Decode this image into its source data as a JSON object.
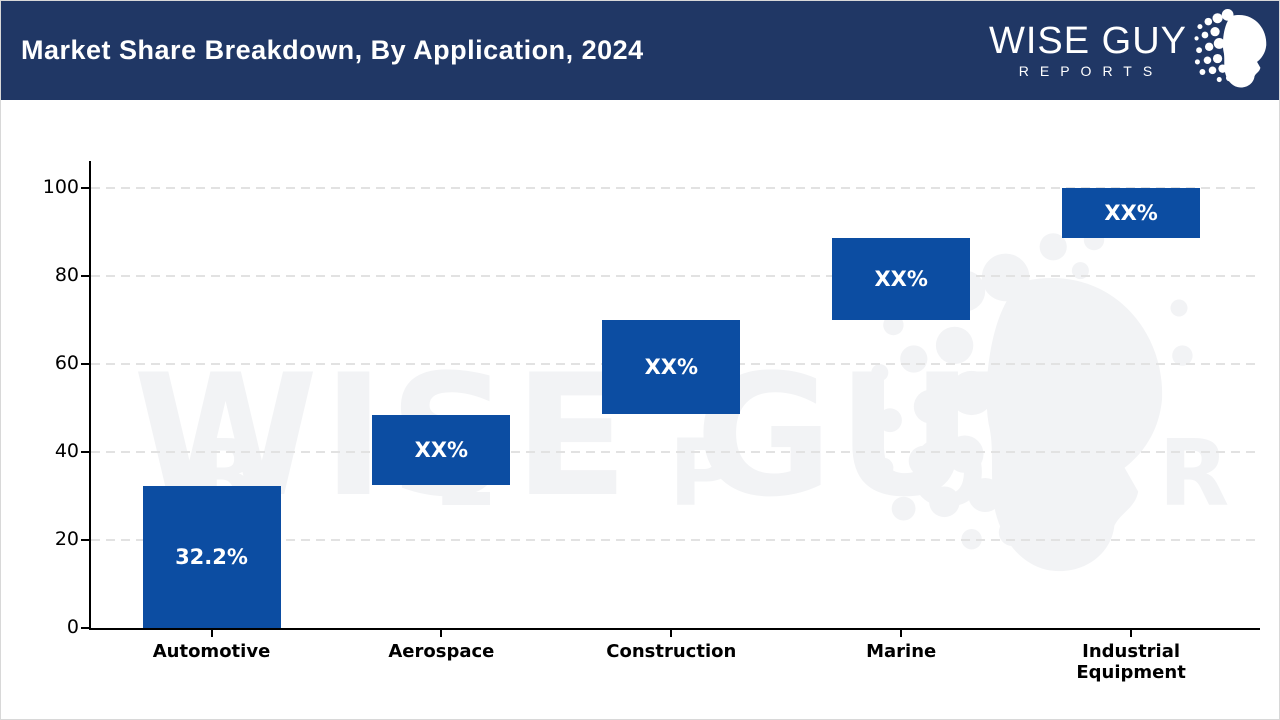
{
  "header": {
    "title": "Market Share Breakdown, By Application, 2024",
    "bg_color": "#203765",
    "logo": {
      "line1": "WISE GUY",
      "line2": "REPORTS"
    }
  },
  "watermark": {
    "line1": "WISE GUY",
    "line2": "REPORTS"
  },
  "chart_data": {
    "type": "bar",
    "subtype": "waterfall",
    "title": "Market Share Breakdown, By Application, 2024",
    "categories": [
      "Automotive",
      "Aerospace",
      "Construction",
      "Marine",
      "Industrial Equipment"
    ],
    "segments": [
      {
        "category": "Automotive",
        "start": 0,
        "end": 32.2,
        "label": "32.2%"
      },
      {
        "category": "Aerospace",
        "start": 32.5,
        "end": 48.4,
        "label": "XX%"
      },
      {
        "category": "Construction",
        "start": 48.6,
        "end": 70.0,
        "label": "XX%"
      },
      {
        "category": "Marine",
        "start": 70.0,
        "end": 88.6,
        "label": "XX%"
      },
      {
        "category": "Industrial Equipment",
        "start": 88.6,
        "end": 100.0,
        "label": "XX%"
      }
    ],
    "xlabel": "",
    "ylabel": "",
    "yticks": [
      0,
      20,
      40,
      60,
      80,
      100
    ],
    "ylim": [
      0,
      106
    ],
    "grid": "horizontal-dashed",
    "legend": "none",
    "bar_color": "#0c4da2",
    "bar_label_color": "#ffffff",
    "grid_color": "#e2e2e2",
    "axis_color": "#000000",
    "watermark_color": "#f2f3f5"
  }
}
